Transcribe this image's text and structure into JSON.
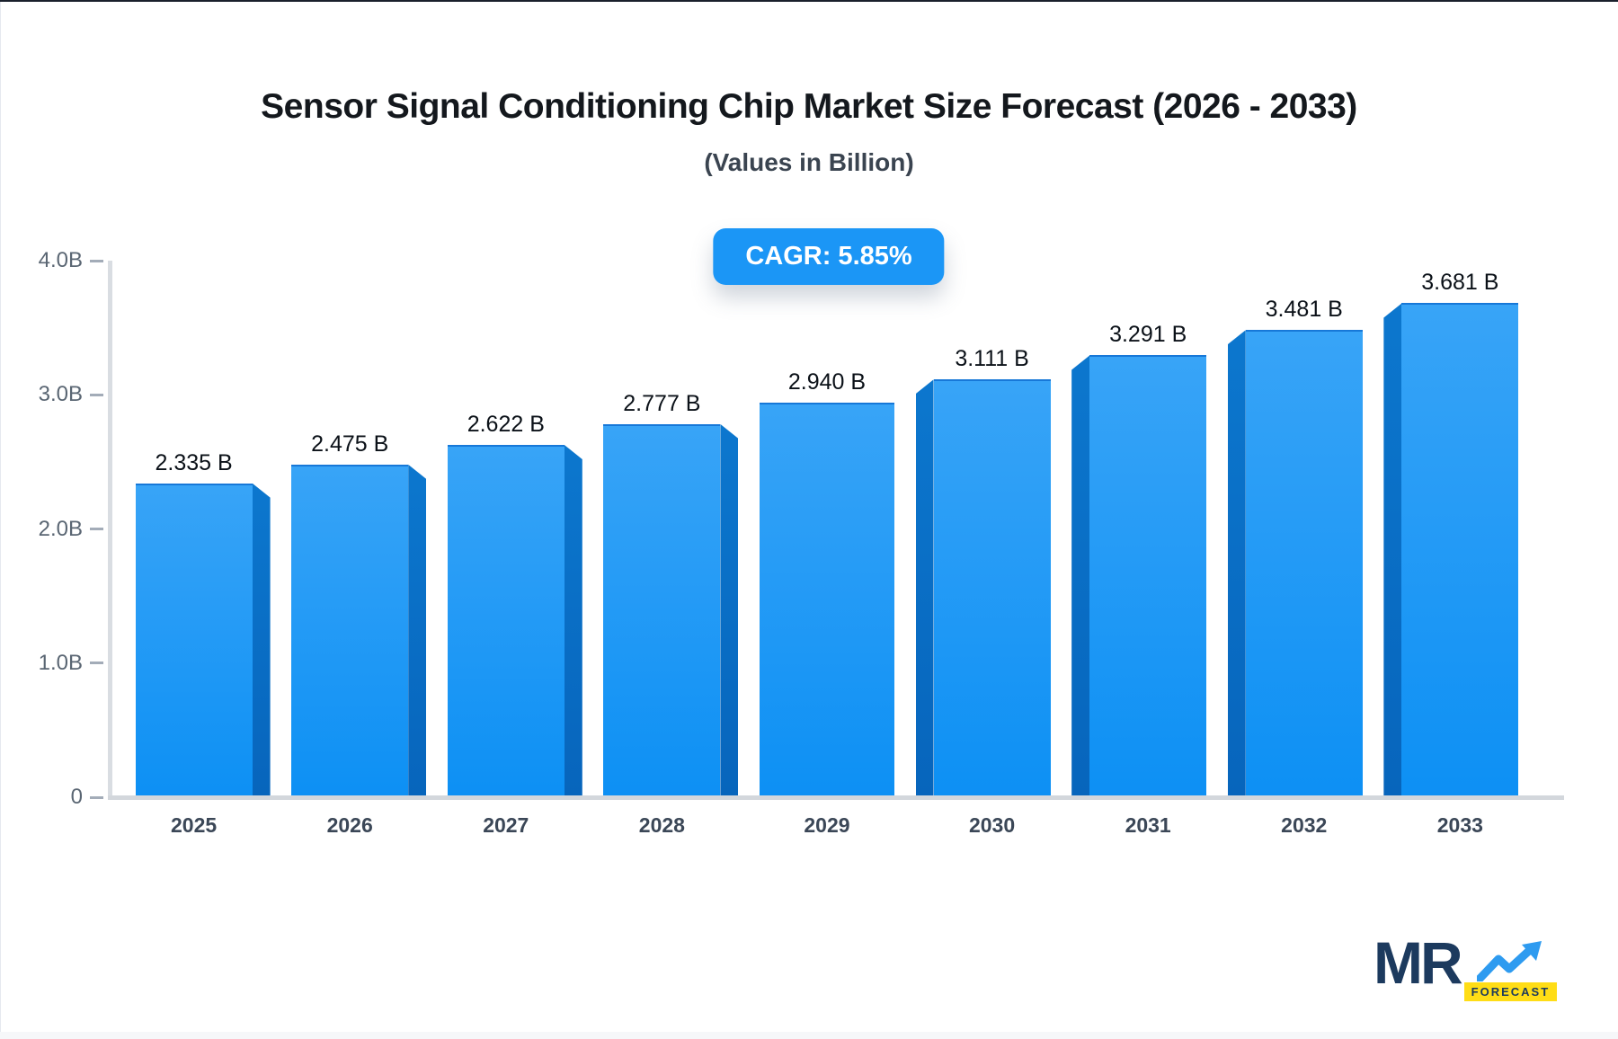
{
  "header": {
    "title": "Sensor Signal Conditioning Chip Market Size Forecast (2026 - 2033)",
    "subtitle": "(Values in Billion)",
    "cagr_label": "CAGR: 5.85%"
  },
  "chart_data": {
    "type": "bar",
    "title": "Sensor Signal Conditioning Chip Market Size Forecast (2026 - 2033)",
    "subtitle": "(Values in Billion)",
    "annotation": "CAGR: 5.85%",
    "categories": [
      "2025",
      "2026",
      "2027",
      "2028",
      "2029",
      "2030",
      "2031",
      "2032",
      "2033"
    ],
    "values": [
      2.335,
      2.475,
      2.622,
      2.777,
      2.94,
      3.111,
      3.291,
      3.481,
      3.681
    ],
    "value_labels": [
      "2.335 B",
      "2.475 B",
      "2.622 B",
      "2.777 B",
      "2.940 B",
      "3.111 B",
      "3.291 B",
      "3.481 B",
      "3.681 B"
    ],
    "xlabel": "",
    "ylabel": "",
    "ylim": [
      0,
      4.0
    ],
    "yticks": [
      {
        "label": "4.0B",
        "value": 4.0
      },
      {
        "label": "3.0B",
        "value": 3.0
      },
      {
        "label": "2.0B",
        "value": 2.0
      },
      {
        "label": "1.0B",
        "value": 1.0
      },
      {
        "label": "0",
        "value": 0
      }
    ],
    "grid": false,
    "legend": "none",
    "colors": {
      "bar_face_top": "#38A4F7",
      "bar_face_bottom": "#0D90F4",
      "bar_side": "#0A6EC6",
      "accent_badge": "#1B96F6",
      "axis_line": "#D9DDE2",
      "tick_text": "#5A6673",
      "category_text": "#3B4757",
      "value_text": "#0B1118"
    }
  },
  "logo": {
    "brand": "MR",
    "sub": "FORECAST",
    "icon": "trend-up-arrow-icon",
    "brand_color": "#1C3A5E",
    "sub_bg": "#FFDD16",
    "arrow_color": "#2E9BF0"
  }
}
